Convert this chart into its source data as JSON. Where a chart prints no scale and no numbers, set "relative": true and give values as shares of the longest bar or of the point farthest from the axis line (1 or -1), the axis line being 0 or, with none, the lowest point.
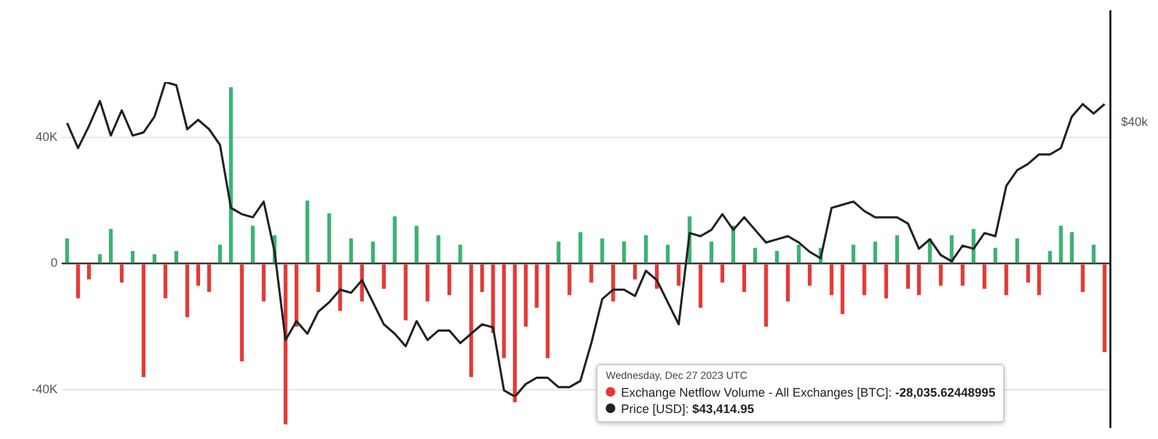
{
  "chart_data": [
    {
      "type": "bar",
      "categories": [
        null,
        null,
        null,
        null,
        null,
        null,
        null,
        null,
        null,
        null,
        null,
        null,
        null,
        null,
        null,
        null,
        null,
        null,
        null,
        null,
        null,
        null,
        null,
        null,
        null,
        null,
        null,
        null,
        null,
        null,
        null,
        null,
        null,
        null,
        null,
        null,
        null,
        null,
        null,
        null,
        null,
        null,
        null,
        null,
        null,
        null,
        null,
        null,
        null,
        null,
        null,
        null,
        null,
        null,
        null,
        null,
        null,
        null,
        null,
        null,
        null,
        null,
        null,
        null,
        null,
        null,
        null,
        null,
        null,
        null,
        null,
        null,
        null,
        null,
        null,
        null,
        null,
        null,
        null,
        null,
        null,
        null,
        null,
        null,
        null,
        null,
        null,
        null,
        null,
        null,
        null,
        null,
        null,
        null,
        null,
        null
      ],
      "series": [
        {
          "name": "Exchange Netflow Volume - All Exchanges [BTC]:",
          "color": "#e53935",
          "values": [
            8000,
            -11000,
            -5000,
            3000,
            11000,
            -6000,
            4000,
            -36000,
            3000,
            -11000,
            4000,
            -17000,
            -7000,
            -9000,
            6000,
            56000,
            -31000,
            12000,
            -12000,
            9000,
            -51000,
            -20000,
            20000,
            -9000,
            16000,
            -15000,
            8000,
            -12000,
            7000,
            -8000,
            15000,
            -18000,
            12000,
            -12000,
            9000,
            -10000,
            6000,
            -36000,
            -9000,
            -22000,
            -30000,
            -44000,
            -20000,
            -14000,
            -30000,
            7000,
            -10000,
            10000,
            -6000,
            8000,
            -12000,
            7000,
            -5000,
            9000,
            -8000,
            6000,
            -7000,
            15000,
            -14000,
            7000,
            -6000,
            12000,
            -9000,
            5000,
            -20000,
            4000,
            -12000,
            6000,
            -7000,
            5000,
            -10000,
            -16000,
            6000,
            -10000,
            7000,
            -11000,
            9000,
            -8000,
            -10000,
            8000,
            -7000,
            9000,
            -7000,
            11000,
            -8000,
            5000,
            -10000,
            8000,
            -6000,
            -10000,
            4000,
            12000,
            10000,
            -9000,
            6000,
            -28036
          ],
          "colors": [
            "#3bb273",
            "#e53935",
            "#e53935",
            "#3bb273",
            "#3bb273",
            "#e53935",
            "#3bb273",
            "#e53935",
            "#3bb273",
            "#e53935",
            "#3bb273",
            "#e53935",
            "#e53935",
            "#e53935",
            "#3bb273",
            "#3bb273",
            "#e53935",
            "#3bb273",
            "#e53935",
            "#3bb273",
            "#e53935",
            "#e53935",
            "#3bb273",
            "#e53935",
            "#3bb273",
            "#e53935",
            "#3bb273",
            "#e53935",
            "#3bb273",
            "#e53935",
            "#3bb273",
            "#e53935",
            "#3bb273",
            "#e53935",
            "#3bb273",
            "#e53935",
            "#3bb273",
            "#e53935",
            "#e53935",
            "#e53935",
            "#e53935",
            "#e53935",
            "#e53935",
            "#e53935",
            "#e53935",
            "#3bb273",
            "#e53935",
            "#3bb273",
            "#e53935",
            "#3bb273",
            "#e53935",
            "#3bb273",
            "#e53935",
            "#3bb273",
            "#e53935",
            "#3bb273",
            "#e53935",
            "#3bb273",
            "#e53935",
            "#3bb273",
            "#e53935",
            "#3bb273",
            "#e53935",
            "#3bb273",
            "#e53935",
            "#3bb273",
            "#e53935",
            "#3bb273",
            "#e53935",
            "#3bb273",
            "#e53935",
            "#e53935",
            "#3bb273",
            "#e53935",
            "#3bb273",
            "#e53935",
            "#3bb273",
            "#e53935",
            "#e53935",
            "#3bb273",
            "#e53935",
            "#3bb273",
            "#e53935",
            "#3bb273",
            "#e53935",
            "#3bb273",
            "#e53935",
            "#3bb273",
            "#e53935",
            "#e53935",
            "#3bb273",
            "#3bb273",
            "#3bb273",
            "#e53935",
            "#3bb273",
            "#e53935"
          ]
        }
      ],
      "ylim": [
        -52000,
        80000
      ],
      "yticks": [
        {
          "value": -40000,
          "label": "-40K"
        },
        0,
        {
          "value": 40000,
          "label": "40K"
        }
      ],
      "grid": "y",
      "legend": "bottom",
      "annotations": [
        "Wednesday, Dec 27 2023 UTC",
        "-28,035.62448995"
      ]
    },
    {
      "type": "line",
      "relative": true,
      "categories": [
        null,
        null,
        null,
        null,
        null,
        null,
        null,
        null,
        null,
        null,
        null,
        null,
        null,
        null,
        null,
        null,
        null,
        null,
        null,
        null,
        null,
        null,
        null,
        null,
        null,
        null,
        null,
        null,
        null,
        null,
        null,
        null,
        null,
        null,
        null,
        null,
        null,
        null,
        null,
        null,
        null,
        null,
        null,
        null,
        null,
        null,
        null,
        null,
        null,
        null,
        null,
        null,
        null,
        null,
        null,
        null,
        null,
        null,
        null,
        null,
        null,
        null,
        null,
        null,
        null,
        null,
        null,
        null,
        null,
        null,
        null,
        null,
        null,
        null,
        null,
        null,
        null,
        null,
        null,
        null,
        null,
        null,
        null,
        null,
        null,
        null,
        null,
        null,
        null,
        null,
        null,
        null,
        null,
        null,
        null,
        null
      ],
      "series": [
        {
          "name": "Price [USD]:",
          "color": "#222222",
          "values": [
            0.87,
            0.79,
            0.86,
            0.94,
            0.83,
            0.91,
            0.83,
            0.84,
            0.89,
            1,
            0.99,
            0.85,
            0.88,
            0.85,
            0.8,
            0.6,
            0.58,
            0.57,
            0.62,
            0.46,
            0.18,
            0.24,
            0.2,
            0.27,
            0.3,
            0.34,
            0.33,
            0.37,
            0.3,
            0.23,
            0.2,
            0.16,
            0.24,
            0.18,
            0.21,
            0.21,
            0.17,
            0.2,
            0.23,
            0.22,
            0.02,
            0,
            0.04,
            0.06,
            0.06,
            0.03,
            0.03,
            0.05,
            0.17,
            0.31,
            0.34,
            0.34,
            0.32,
            0.4,
            0.37,
            0.3,
            0.23,
            0.52,
            0.51,
            0.53,
            0.58,
            0.53,
            0.57,
            0.53,
            0.49,
            0.5,
            0.51,
            0.49,
            0.46,
            0.44,
            0.6,
            0.61,
            0.62,
            0.59,
            0.57,
            0.57,
            0.57,
            0.55,
            0.47,
            0.5,
            0.45,
            0.43,
            0.48,
            0.47,
            0.52,
            0.51,
            0.67,
            0.72,
            0.74,
            0.77,
            0.77,
            0.79,
            0.89,
            0.93,
            0.9,
            0.93
          ]
        }
      ],
      "legend": "bottom",
      "marker": "none",
      "annotations": [
        "$40k",
        "$43,414.95"
      ]
    }
  ]
}
